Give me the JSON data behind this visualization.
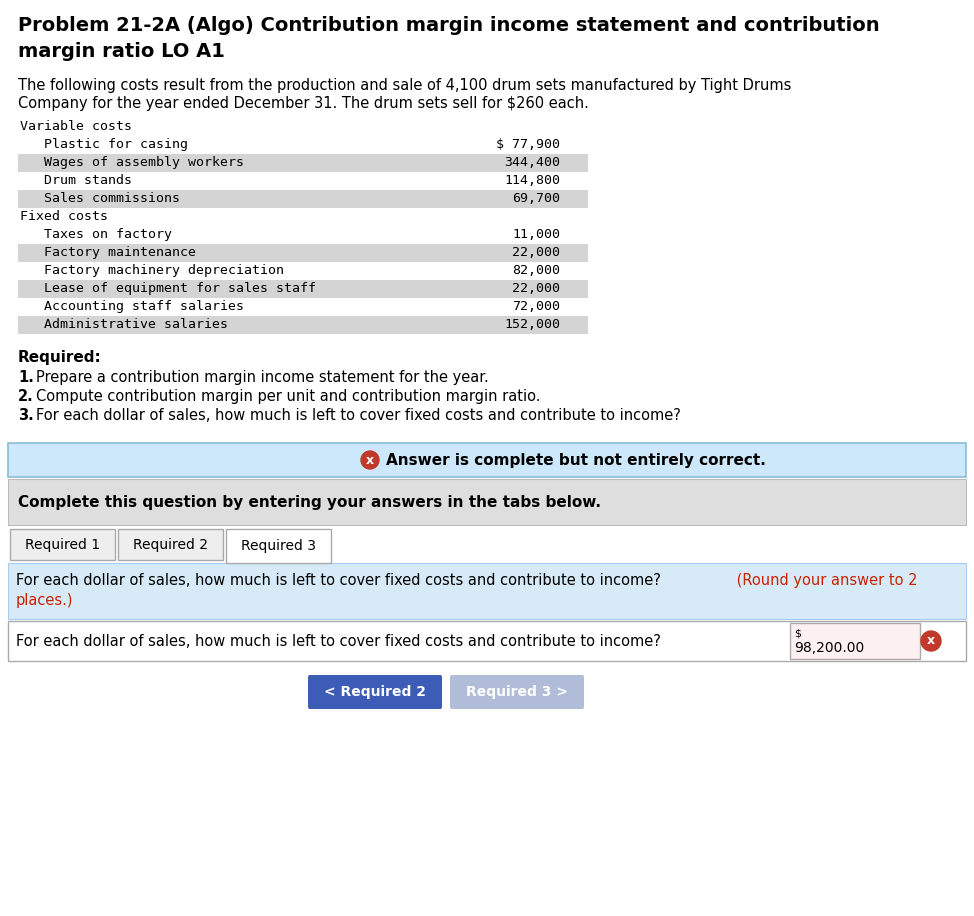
{
  "title_line1": "Problem 21-2A (Algo) Contribution margin income statement and contribution",
  "title_line2": "margin ratio LO A1",
  "intro_line1": "The following costs result from the production and sale of 4,100 drum sets manufactured by Tight Drums",
  "intro_line2": "Company for the year ended December 31. The drum sets sell for $260 each.",
  "table_rows": [
    {
      "label": "Variable costs",
      "value": null,
      "indent": 0,
      "header": true
    },
    {
      "label": "  Plastic for casing",
      "value": "$ 77,900",
      "indent": 1,
      "header": false
    },
    {
      "label": "  Wages of assembly workers",
      "value": "344,400",
      "indent": 1,
      "header": false
    },
    {
      "label": "  Drum stands",
      "value": "114,800",
      "indent": 1,
      "header": false
    },
    {
      "label": "  Sales commissions",
      "value": "69,700",
      "indent": 1,
      "header": false
    },
    {
      "label": "Fixed costs",
      "value": null,
      "indent": 0,
      "header": true
    },
    {
      "label": "  Taxes on factory",
      "value": "11,000",
      "indent": 1,
      "header": false
    },
    {
      "label": "  Factory maintenance",
      "value": "22,000",
      "indent": 1,
      "header": false
    },
    {
      "label": "  Factory machinery depreciation",
      "value": "82,000",
      "indent": 1,
      "header": false
    },
    {
      "label": "  Lease of equipment for sales staff",
      "value": "22,000",
      "indent": 1,
      "header": false
    },
    {
      "label": "  Accounting staff salaries",
      "value": "72,000",
      "indent": 1,
      "header": false
    },
    {
      "label": "  Administrative salaries",
      "value": "152,000",
      "indent": 1,
      "header": false
    }
  ],
  "required_text": "Required:",
  "required_items": [
    {
      "num": "1.",
      "text": "Prepare a contribution margin income statement for the year."
    },
    {
      "num": "2.",
      "text": "Compute contribution margin per unit and contribution margin ratio."
    },
    {
      "num": "3.",
      "text": "For each dollar of sales, how much is left to cover fixed costs and contribute to income?"
    }
  ],
  "answer_banner_bg": "#cde8fa",
  "answer_banner_border": "#8bbbd8",
  "complete_bg": "#dedede",
  "tabs": [
    "Required 1",
    "Required 2",
    "Required 3"
  ],
  "active_tab": 2,
  "question_bg": "#d6eaf8",
  "answer_value": "98,200.00",
  "answer_currency": "$",
  "nav_left_text": "< Required 2",
  "nav_right_text": "Required 3 >",
  "nav_left_bg": "#3d5cb8",
  "nav_right_bg": "#b0bcd8",
  "bg_color": "#ffffff",
  "shade_color": "#d4d4d4",
  "mono_font": "DejaVu Sans Mono",
  "sans_font": "DejaVu Sans"
}
